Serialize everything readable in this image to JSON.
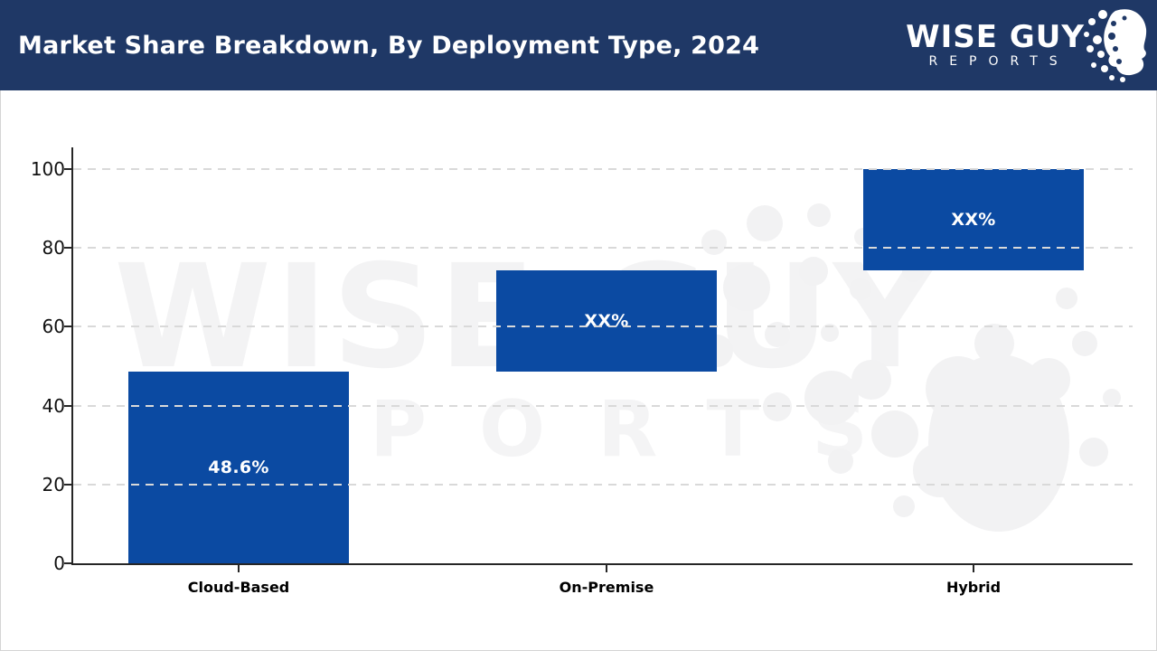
{
  "header": {
    "title": "Market Share Breakdown, By Deployment Type, 2024",
    "bg_color": "#1f3866",
    "logo": {
      "wordmark": "WISE GUY",
      "subtitle": "REPORTS"
    }
  },
  "watermark": {
    "line1": "WISE GUY",
    "line2": "REPORTS"
  },
  "chart_data": {
    "type": "bar",
    "variant": "waterfall",
    "title": "Market Share Breakdown, By Deployment Type, 2024",
    "categories": [
      "Cloud-Based",
      "On-Premise",
      "Hybrid"
    ],
    "segments": [
      {
        "category": "Cloud-Based",
        "start": 0,
        "end": 48.6,
        "label": "48.6%"
      },
      {
        "category": "On-Premise",
        "start": 48.6,
        "end": 74.3,
        "label": "XX%"
      },
      {
        "category": "Hybrid",
        "start": 74.3,
        "end": 100,
        "label": "XX%"
      }
    ],
    "values_pct": [
      48.6,
      25.7,
      25.7
    ],
    "yticks": [
      0,
      20,
      40,
      60,
      80,
      100
    ],
    "ylim": [
      0,
      105
    ],
    "xlabel": "",
    "ylabel": "",
    "bar_color": "#0b4aa2",
    "bar_label_color": "#ffffff",
    "axis_color": "#262626",
    "grid": {
      "horizontal": true,
      "style": "dashed",
      "color": "#d9d9d9",
      "over_bars": true
    },
    "legend": "none"
  }
}
